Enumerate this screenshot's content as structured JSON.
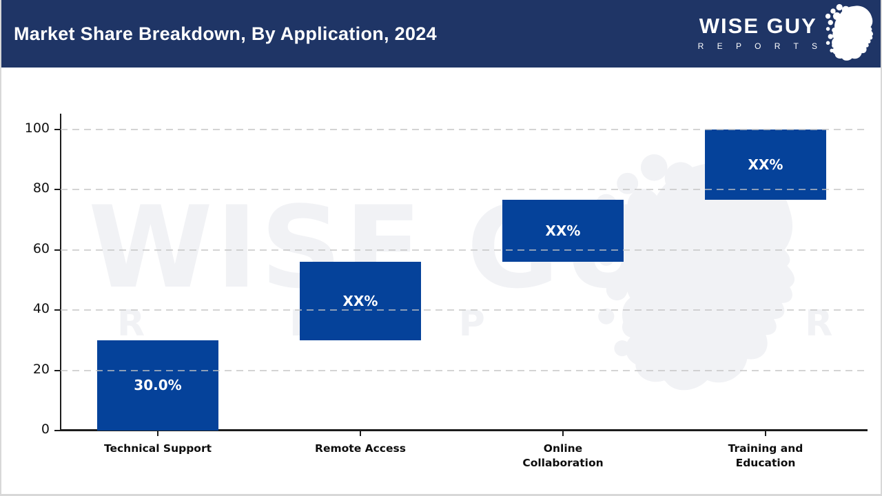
{
  "header": {
    "title": "Market Share Breakdown, By Application, 2024",
    "logo": {
      "primary": "WISE GUY",
      "secondary": "R E P O R T S"
    }
  },
  "watermark": {
    "primary": "WISE GUY",
    "secondary": "R E P O R T S"
  },
  "colors": {
    "header_bg": "#1f3566",
    "bar": "#05429a",
    "bar_label": "#ffffff",
    "axis": "#1c1c1c",
    "grid": "#c3c3c3",
    "watermark": "#f1f2f5"
  },
  "chart_data": {
    "type": "bar",
    "subtype": "waterfall",
    "title": "Market Share Breakdown, By Application, 2024",
    "categories": [
      "Technical Support",
      "Remote Access",
      "Online\nCollaboration",
      "Training and\nEducation"
    ],
    "segments": [
      {
        "category": "Technical Support",
        "start": 0,
        "end": 30,
        "label": "30.0%"
      },
      {
        "category": "Remote Access",
        "start": 30,
        "end": 56,
        "label": "XX%"
      },
      {
        "category": "Online Collaboration",
        "start": 56,
        "end": 76.5,
        "label": "XX%"
      },
      {
        "category": "Training and Education",
        "start": 76.5,
        "end": 100,
        "label": "XX%"
      }
    ],
    "ylim": [
      0,
      105
    ],
    "yticks": [
      0,
      20,
      40,
      60,
      80,
      100
    ],
    "grid": "horizontal-dashed",
    "legend": "none",
    "bar_color": "#05429a"
  }
}
